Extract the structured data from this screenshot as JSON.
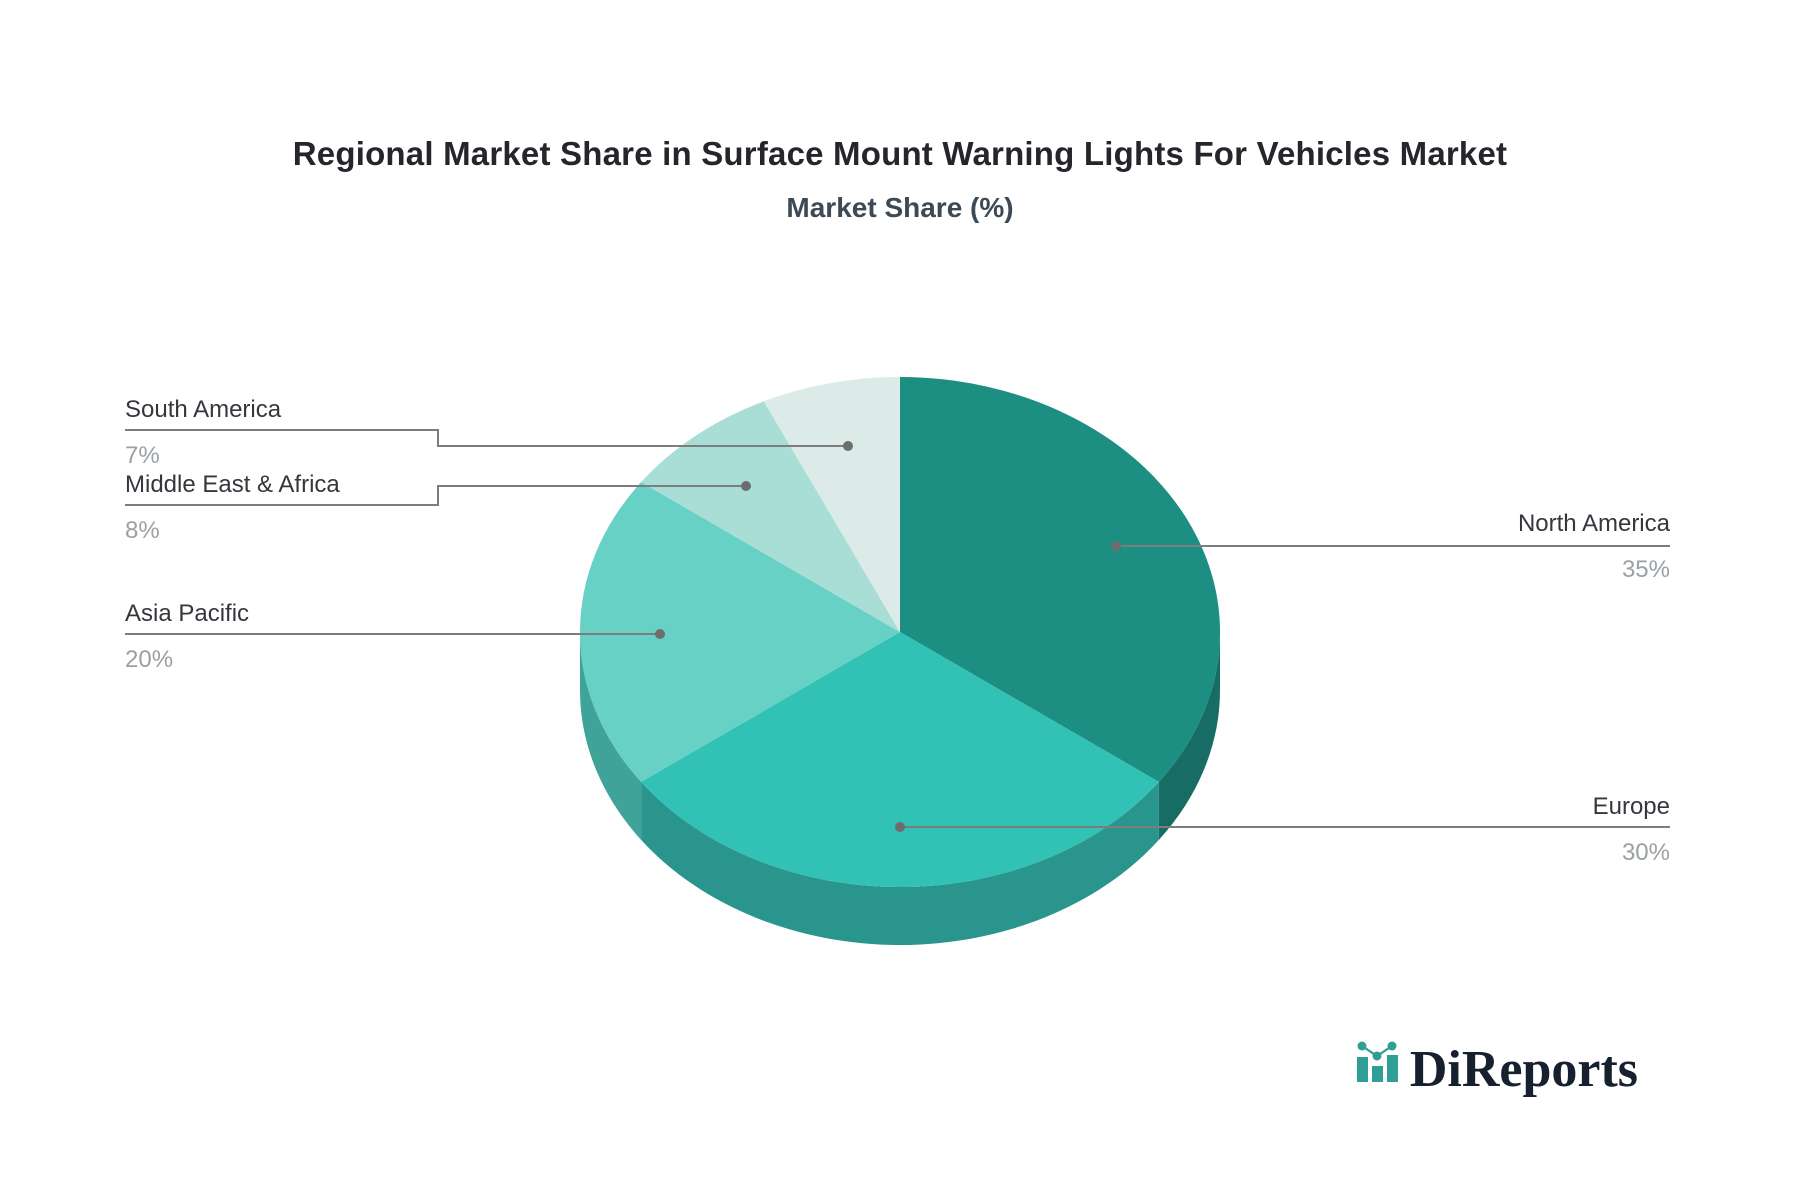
{
  "title": "Regional Market Share in Surface Mount Warning Lights For Vehicles Market",
  "subtitle": "Market Share (%)",
  "logo": {
    "text": "DiReports"
  },
  "colors": {
    "leader_line": "#7d7d7d",
    "leader_dot": "#6d6d6d",
    "label_name": "#34373c",
    "label_pct": "#9aa0a4",
    "logo_icon": "#2f9e95",
    "logo_text": "#17202e"
  },
  "chart_data": {
    "type": "pie",
    "style": "3d",
    "title": "Regional Market Share in Surface Mount Warning Lights For Vehicles Market",
    "subtitle": "Market Share (%)",
    "unit": "%",
    "start_angle_deg": 0,
    "direction": "clockwise",
    "legend": "none",
    "series": [
      {
        "name": "North America",
        "value": 35,
        "pct_label": "35%",
        "color": "#1d8e82",
        "side_color": "#176d63"
      },
      {
        "name": "Europe",
        "value": 30,
        "pct_label": "30%",
        "color": "#31c1b5",
        "side_color": "#2a958c"
      },
      {
        "name": "Asia Pacific",
        "value": 20,
        "pct_label": "20%",
        "color": "#67d1c6",
        "side_color": "#40a399"
      },
      {
        "name": "Middle East & Africa",
        "value": 8,
        "pct_label": "8%",
        "color": "#a9ded7",
        "side_color": "#7fbfb7"
      },
      {
        "name": "South America",
        "value": 7,
        "pct_label": "7%",
        "color": "#dcebe7",
        "side_color": "#b2d2cc"
      }
    ]
  }
}
